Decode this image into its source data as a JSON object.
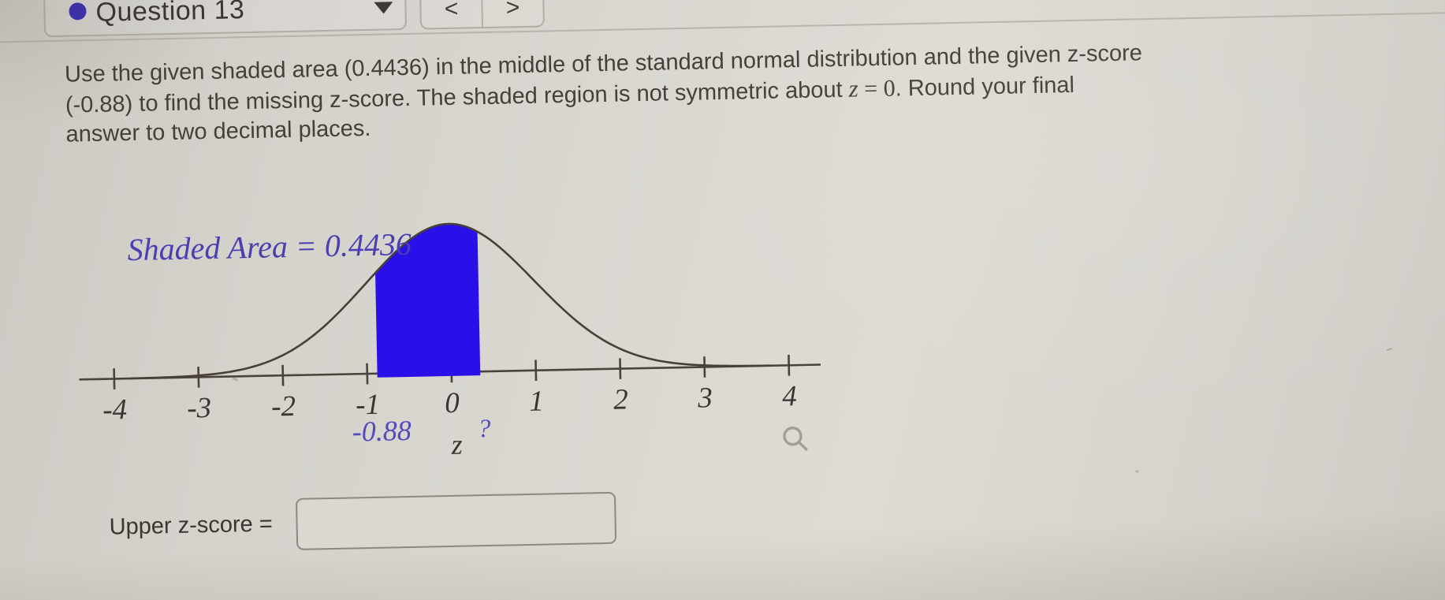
{
  "topbar": {
    "question_button": {
      "bullet_icon": "filled-circle",
      "label": "Question 13",
      "dropdown_icon": "chevron-down"
    },
    "prev_button_label": "<",
    "next_button_label": ">"
  },
  "question": {
    "line1": "Use the given shaded area (0.4436) in the middle of the standard normal distribution and the given z-score",
    "line2_pre": "(-0.88) to find the missing z-score. The shaded region is not symmetric about ",
    "line2_math_var": "z",
    "line2_math_rest": " = 0",
    "line2_post": ". Round your final",
    "line3": "answer to two decimal places."
  },
  "chart_data": {
    "type": "area",
    "title": "Shaded Area = 0.4436",
    "distribution": "standard normal pdf",
    "x_ticks": [
      -4,
      -3,
      -2,
      -1,
      0,
      1,
      2,
      3,
      4
    ],
    "xlim": [
      -4.4,
      4.35
    ],
    "curve_range": [
      -3.8,
      3.8
    ],
    "shaded": {
      "lower_z": -0.88,
      "upper_z": 0.34,
      "area": 0.4436
    },
    "annotations": {
      "lower_label": "-0.88",
      "axis_variable": "z",
      "unknown_marker": "?"
    },
    "legend": "none",
    "colors": {
      "fill": "#2a10e8",
      "curve": "#483f39",
      "tick_labels": "#3b3531",
      "blue_labels": "#5349bf",
      "title": "#4b3eb0"
    }
  },
  "answer": {
    "label": "Upper z-score =",
    "input_value": ""
  },
  "colors": {
    "page_bg": "#d6d3cd",
    "accent_blue": "#4b3eb0",
    "shade_fill": "#2a10e8",
    "bullet_blue": "#3c30af"
  }
}
